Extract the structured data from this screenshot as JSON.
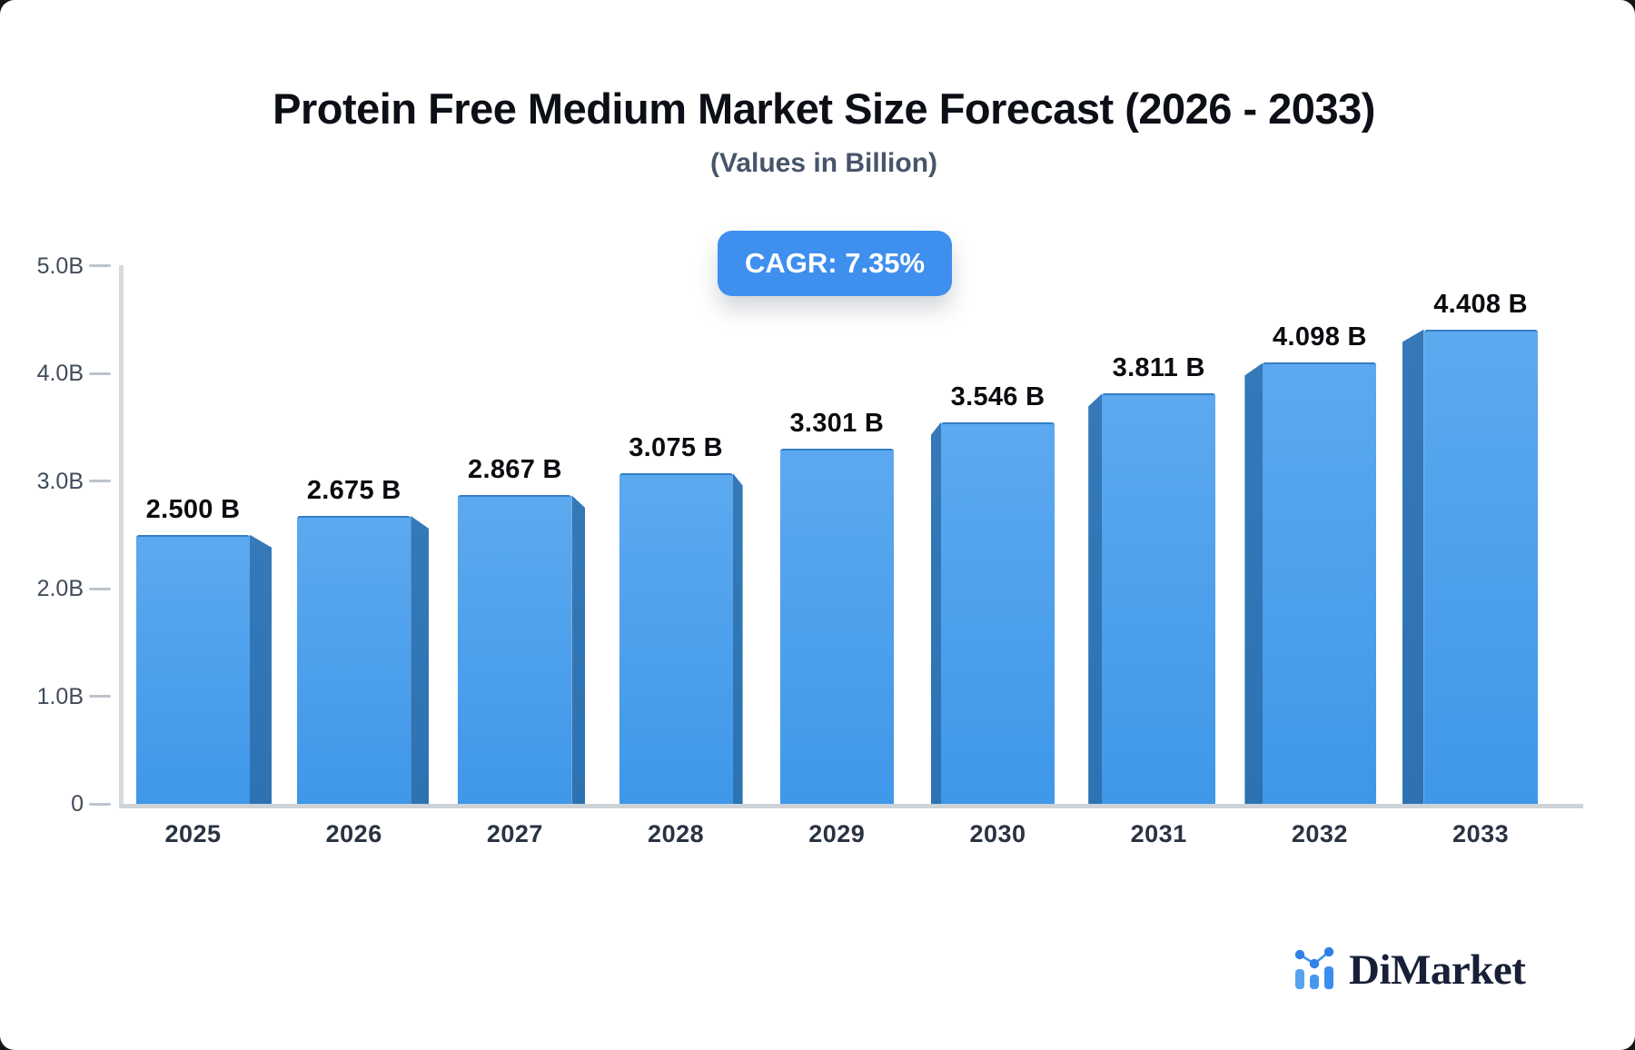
{
  "title": "Protein Free Medium Market Size Forecast (2026 - 2033)",
  "subtitle": "(Values in Billion)",
  "cagr": {
    "label": "CAGR: 7.35%"
  },
  "brand": {
    "name": "DiMarket",
    "icon": "bar-line-chart-icon"
  },
  "colors": {
    "badge_bg": "#3F8FEE",
    "bar_face_top": "#5CA9EF",
    "bar_face_bottom": "#3F97E9",
    "bar_side_top": "#3579B9",
    "bar_side_bottom": "#2D72B2",
    "bar_top_edge": "rgba(43,105,168,0.55)",
    "axis_line": "#D8DBDE",
    "title_text": "#0C0F16",
    "subtitle_text": "#48546A",
    "logo_blue": "#429AF0"
  },
  "chart_data": {
    "type": "bar",
    "title": "Protein Free Medium Market Size Forecast (2026 - 2033)",
    "subtitle": "(Values in Billion)",
    "categories": [
      "2025",
      "2026",
      "2027",
      "2028",
      "2029",
      "2030",
      "2031",
      "2032",
      "2033"
    ],
    "values": [
      2.5,
      2.675,
      2.867,
      3.075,
      3.301,
      3.546,
      3.811,
      4.098,
      4.408
    ],
    "value_labels": [
      "2.500 B",
      "2.675 B",
      "2.867 B",
      "3.075 B",
      "3.301 B",
      "3.546 B",
      "3.811 B",
      "4.098 B",
      "4.408 B"
    ],
    "unit": "Billion",
    "ylim": [
      0,
      5
    ],
    "ytick_labels": [
      "5.0B",
      "4.0B",
      "3.0B",
      "2.0B",
      "1.0B",
      "0"
    ],
    "grid": false,
    "legend": "none",
    "style": "3d-beveled-bars-center-perspective",
    "cagr_percent": 7.35
  }
}
